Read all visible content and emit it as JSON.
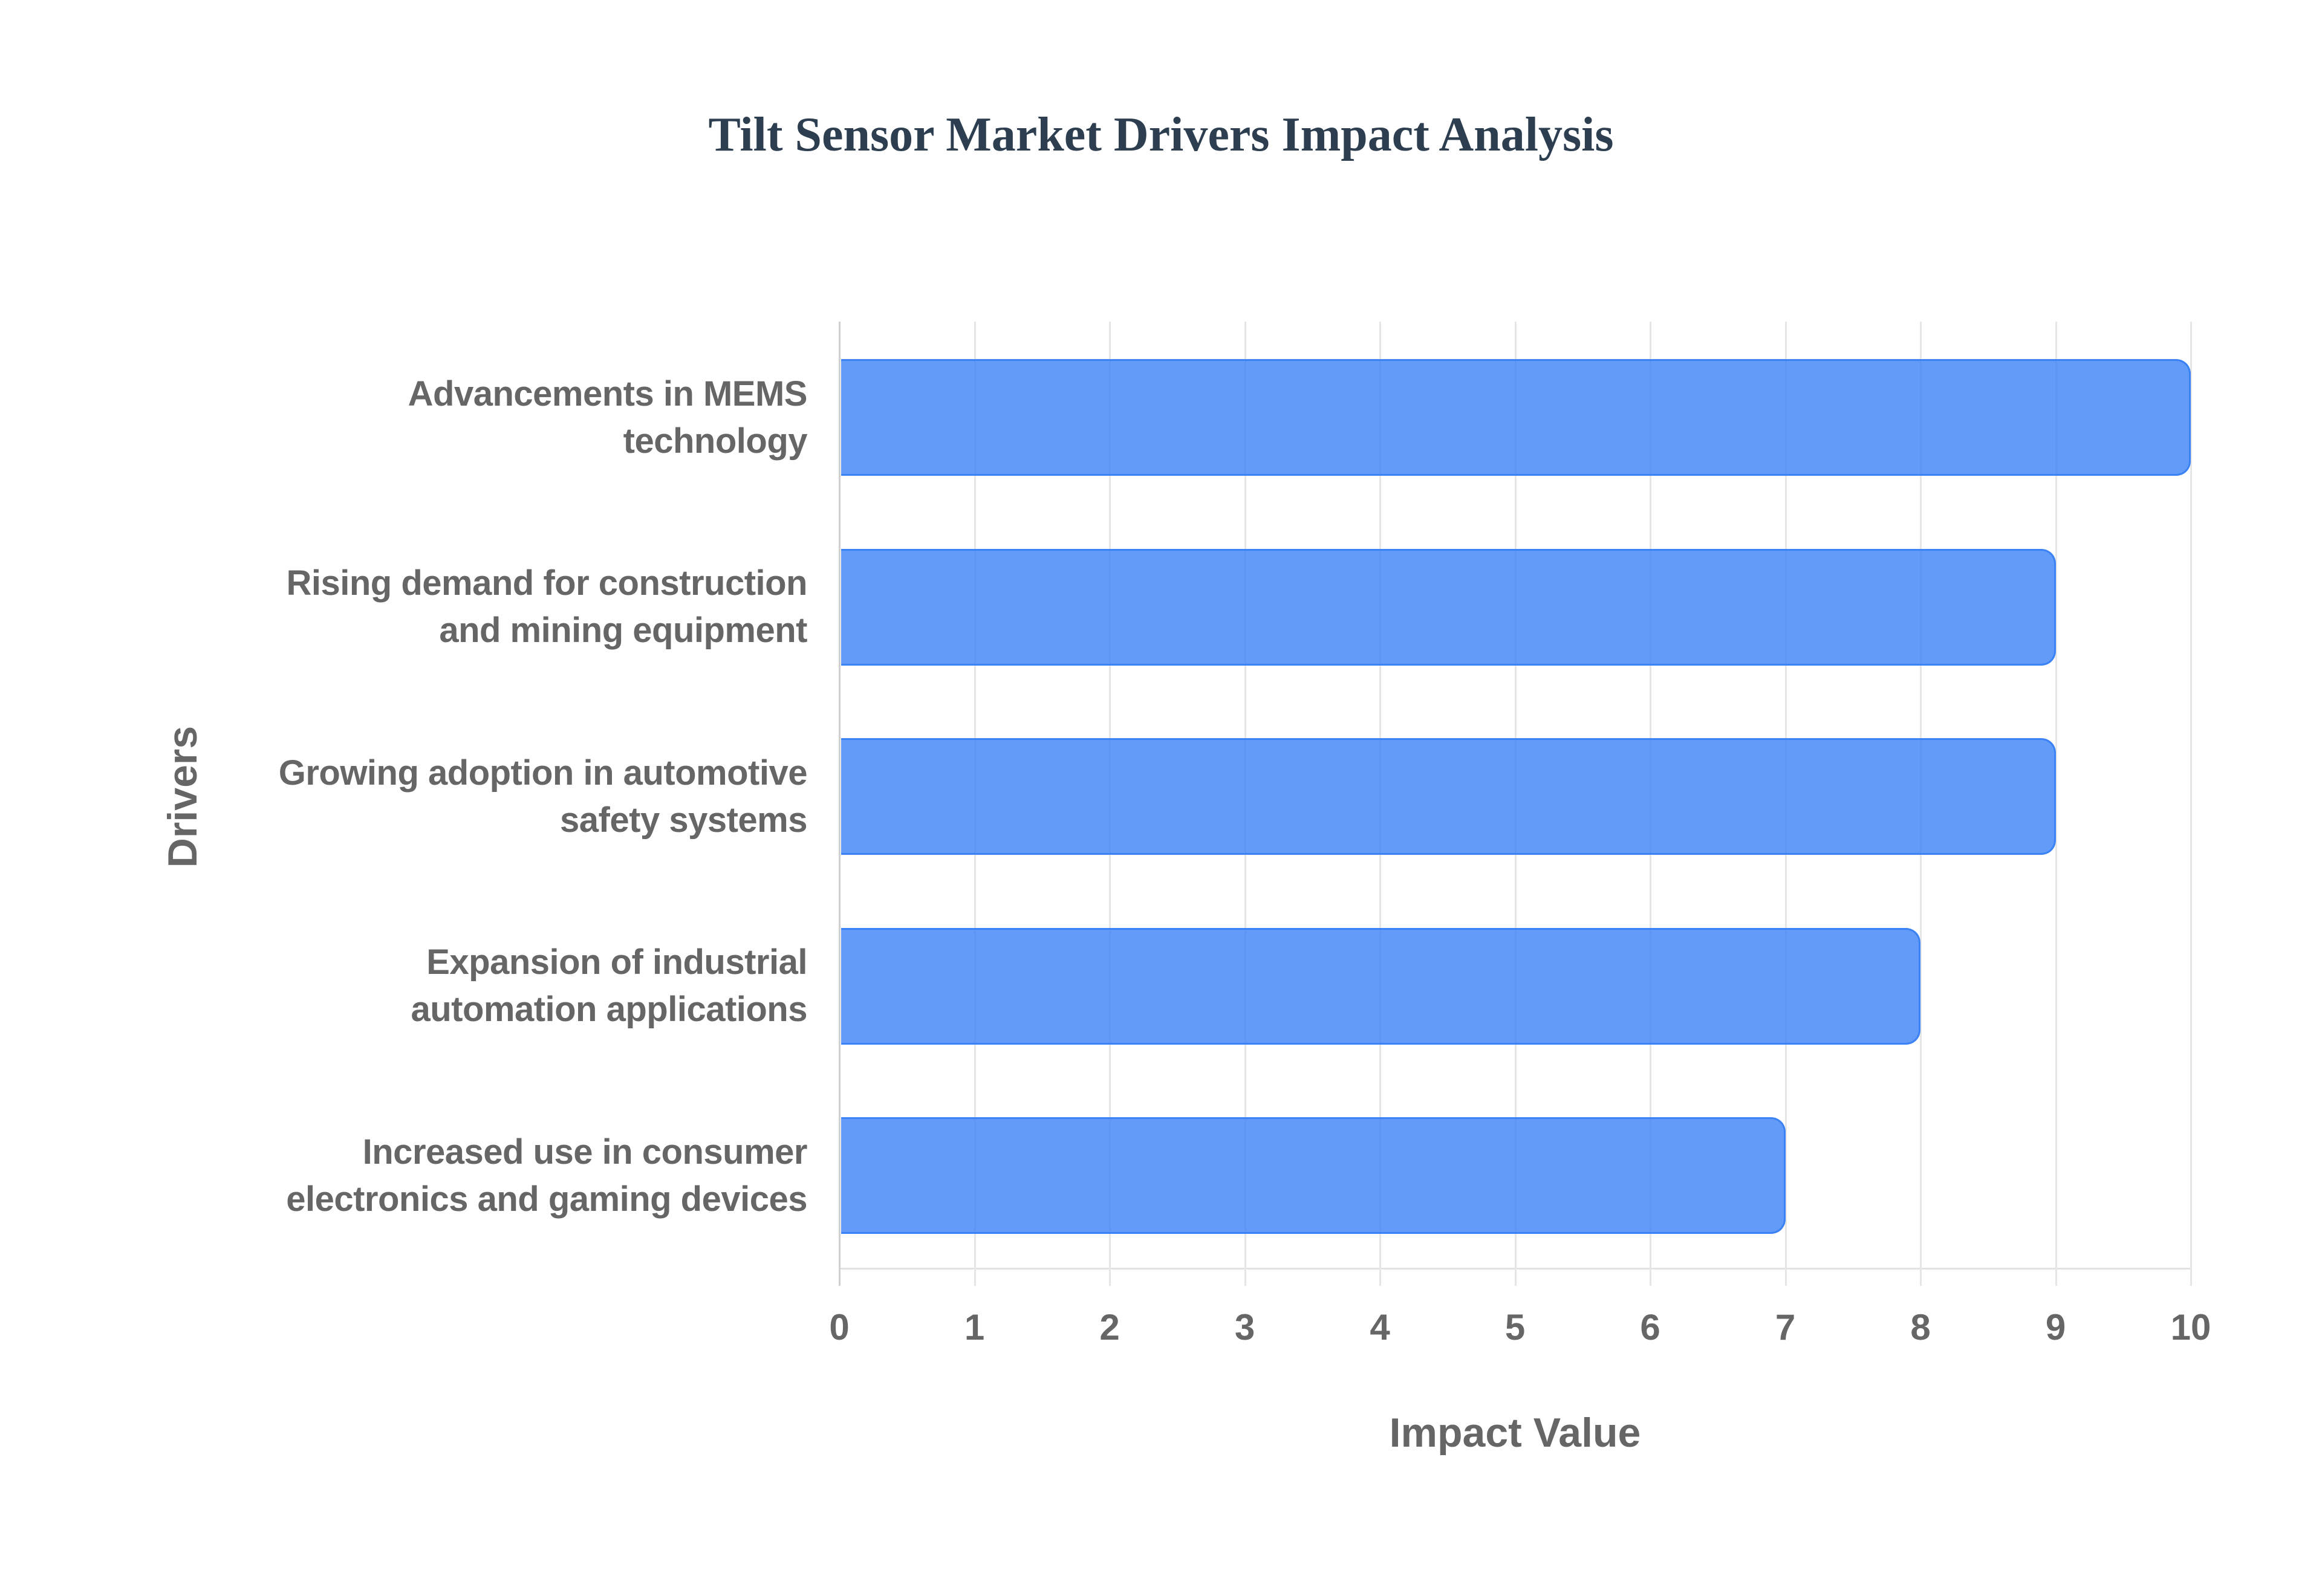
{
  "chart": {
    "title": "Tilt Sensor Market Drivers Impact Analysis",
    "x_axis_title": "Impact Value",
    "y_axis_title": "Drivers",
    "x_ticks": [
      "0",
      "1",
      "2",
      "3",
      "4",
      "5",
      "6",
      "7",
      "8",
      "9",
      "10"
    ],
    "categories": [
      {
        "line1": "Advancements in MEMS",
        "line2": "technology",
        "value": 10
      },
      {
        "line1": "Rising demand for construction",
        "line2": "and mining equipment",
        "value": 9
      },
      {
        "line1": "Growing adoption in automotive",
        "line2": "safety systems",
        "value": 9
      },
      {
        "line1": "Expansion of industrial",
        "line2": "automation applications",
        "value": 8
      },
      {
        "line1": "Increased use in consumer",
        "line2": "electronics and gaming devices",
        "value": 7
      }
    ],
    "colors": {
      "bar_fill": "rgba(59,130,246,0.8)",
      "bar_border": "#3b82f6",
      "title": "#2c3e50",
      "label": "#666666"
    }
  },
  "chart_data": {
    "type": "bar",
    "orientation": "horizontal",
    "title": "Tilt Sensor Market Drivers Impact Analysis",
    "xlabel": "Impact Value",
    "ylabel": "Drivers",
    "categories": [
      "Advancements in MEMS technology",
      "Rising demand for construction and mining equipment",
      "Growing adoption in automotive safety systems",
      "Expansion of industrial automation applications",
      "Increased use in consumer electronics and gaming devices"
    ],
    "values": [
      10,
      9,
      9,
      8,
      7
    ],
    "xlim": [
      0,
      10
    ],
    "x_ticks": [
      0,
      1,
      2,
      3,
      4,
      5,
      6,
      7,
      8,
      9,
      10
    ],
    "grid": true,
    "legend": "none"
  }
}
